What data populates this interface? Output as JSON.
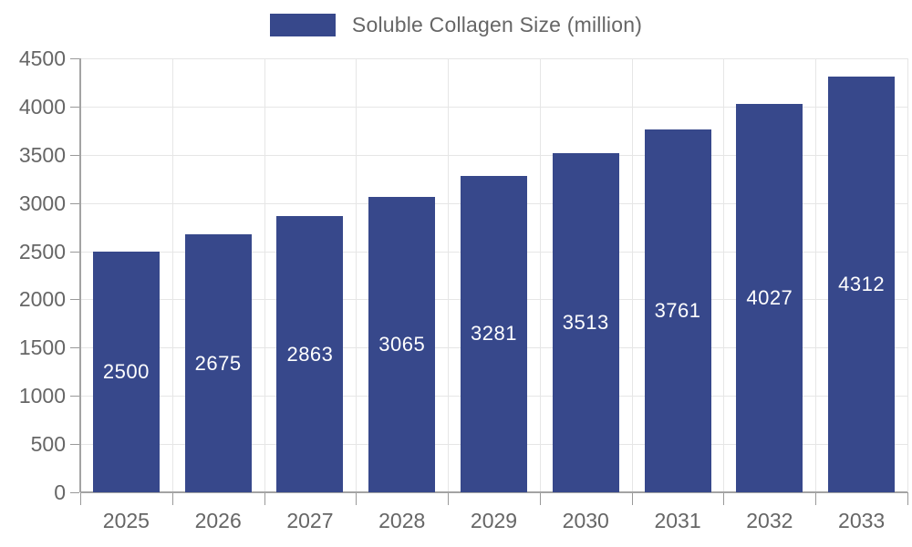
{
  "chart_data": {
    "type": "bar",
    "title": "",
    "legend_label": "Soluble Collagen Size (million)",
    "legend_position": "top-center",
    "categories": [
      "2025",
      "2026",
      "2027",
      "2028",
      "2029",
      "2030",
      "2031",
      "2032",
      "2033"
    ],
    "series": [
      {
        "name": "Soluble Collagen Size (million)",
        "values": [
          2500,
          2675,
          2863,
          3065,
          3281,
          3513,
          3761,
          4027,
          4312
        ]
      }
    ],
    "xlabel": "",
    "ylabel": "",
    "ylim": [
      0,
      4500
    ],
    "y_ticks": [
      0,
      500,
      1000,
      1500,
      2000,
      2500,
      3000,
      3500,
      4000,
      4500
    ],
    "grid": "horizontal-and-vertical",
    "data_labels": "inside-center",
    "colors": {
      "bar": "#37488B",
      "grid": "#e6e6e6",
      "axis": "#a3a3a3",
      "tick_mark": "#999999",
      "tick_label": "#666666",
      "legend_text": "#666666",
      "data_label": "#ffffff"
    }
  }
}
